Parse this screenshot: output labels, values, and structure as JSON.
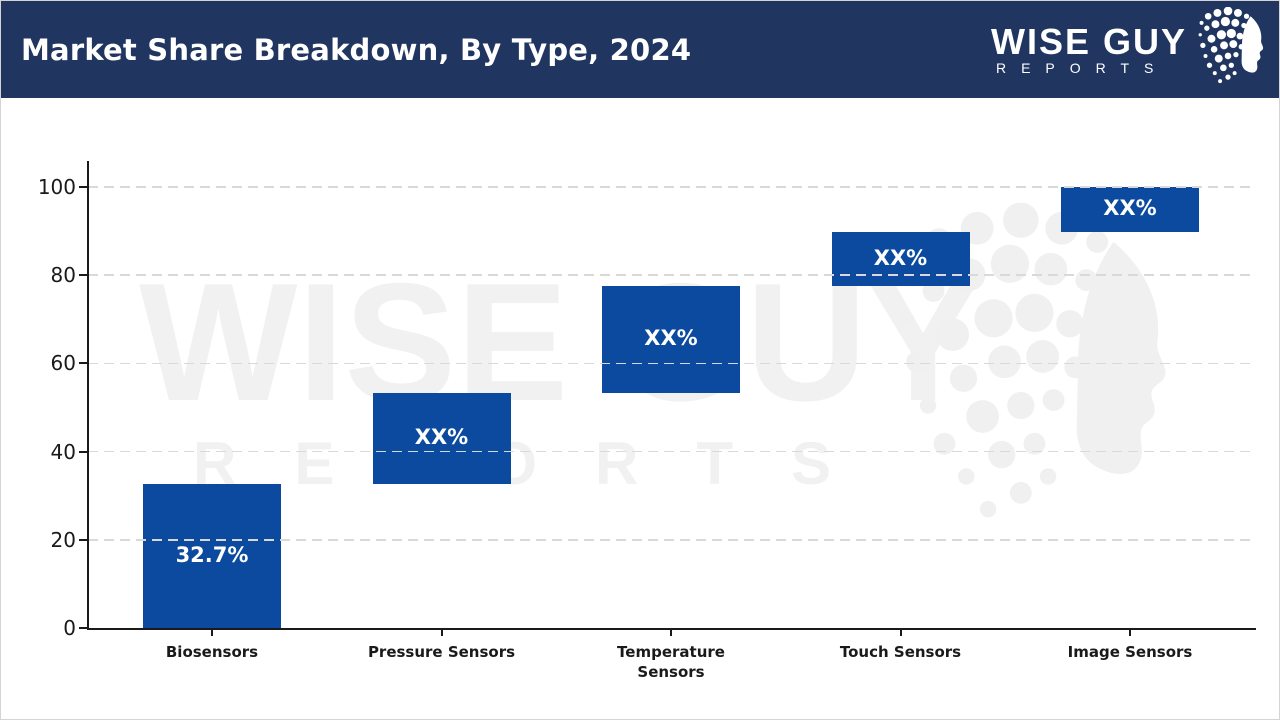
{
  "header": {
    "title": "Market Share Breakdown, By Type, 2024",
    "logo": {
      "wordmark": "WISE GUY",
      "subtext": "REPORTS"
    }
  },
  "watermark": {
    "line1": "WISE GUY",
    "line2": "REPORTS"
  },
  "chart_data": {
    "type": "bar",
    "subtype": "floating-waterfall",
    "title": "Market Share Breakdown, By Type, 2024",
    "categories": [
      "Biosensors",
      "Pressure Sensors",
      "Temperature Sensors",
      "Touch Sensors",
      "Image Sensors"
    ],
    "segments": [
      {
        "category": "Biosensors",
        "start": 0,
        "end": 32.7,
        "label": "32.7%"
      },
      {
        "category": "Pressure Sensors",
        "start": 32.7,
        "end": 53.3,
        "label": "XX%"
      },
      {
        "category": "Temperature Sensors",
        "start": 53.3,
        "end": 77.6,
        "label": "XX%"
      },
      {
        "category": "Touch Sensors",
        "start": 77.6,
        "end": 89.8,
        "label": "XX%"
      },
      {
        "category": "Image Sensors",
        "start": 89.8,
        "end": 100,
        "label": "XX%"
      }
    ],
    "xlabel": "",
    "ylabel": "",
    "ylim": [
      0,
      100
    ],
    "yticks": [
      0,
      20,
      40,
      60,
      80,
      100
    ],
    "grid": "horizontal-dashed",
    "legend": "none",
    "colors": {
      "bar": "#0b4a9e",
      "bar_label": "#ffffff",
      "grid": "#d9d9d9",
      "axis": "#1a1a1a",
      "header_bg": "#203560",
      "header_text": "#ffffff",
      "watermark": "#f1f1f1"
    }
  }
}
